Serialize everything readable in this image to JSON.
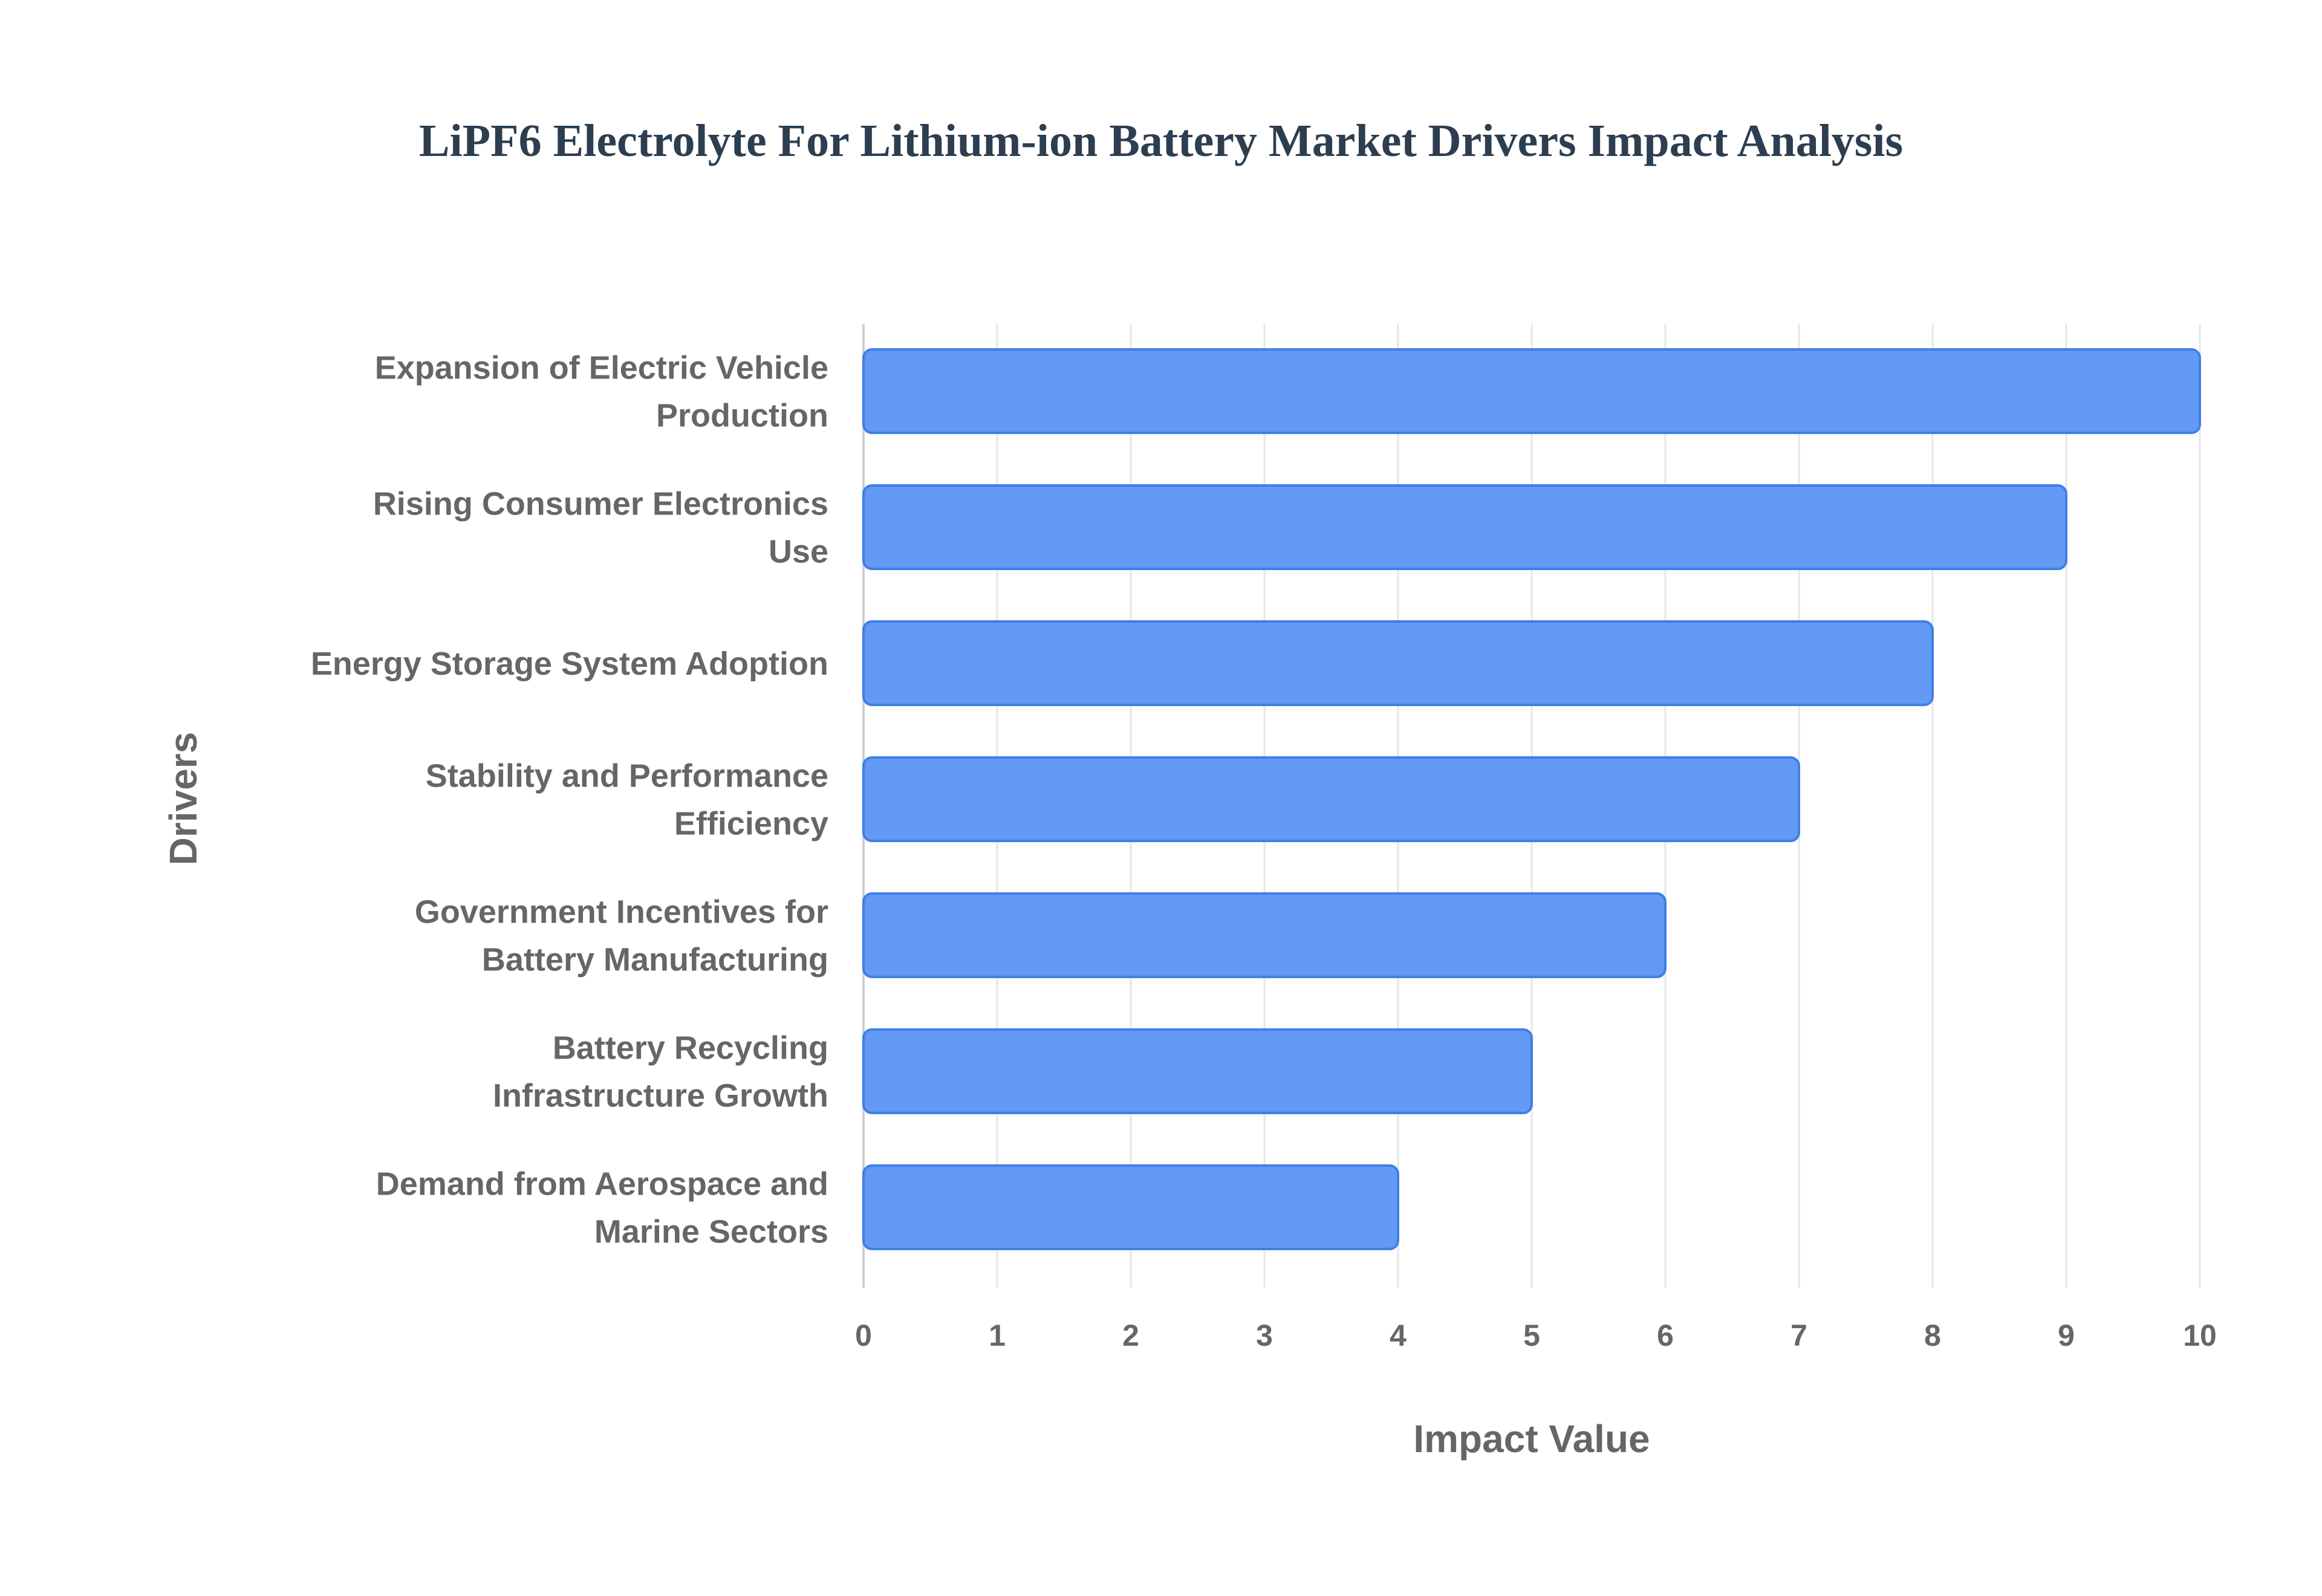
{
  "chart_data": {
    "type": "bar",
    "orientation": "horizontal",
    "title": "LiPF6 Electrolyte For Lithium-ion Battery Market Drivers Impact Analysis",
    "xlabel": "Impact Value",
    "ylabel": "Drivers",
    "categories": [
      [
        "Expansion of Electric Vehicle",
        "Production"
      ],
      [
        "Rising Consumer Electronics",
        "Use"
      ],
      [
        "Energy Storage System Adoption"
      ],
      [
        "Stability and Performance",
        "Efficiency"
      ],
      [
        "Government Incentives for",
        "Battery Manufacturing"
      ],
      [
        "Battery Recycling",
        "Infrastructure Growth"
      ],
      [
        "Demand from Aerospace and",
        "Marine Sectors"
      ]
    ],
    "values": [
      10,
      9,
      8,
      7,
      6,
      5,
      4
    ],
    "xlim": [
      0,
      10
    ],
    "xticks": [
      "0",
      "1",
      "2",
      "3",
      "4",
      "5",
      "6",
      "7",
      "8",
      "9",
      "10"
    ],
    "grid": true,
    "colors": {
      "bar": "#639af5",
      "bar_border": "#3f7fe8",
      "title": "#2c3e50",
      "text": "#666666",
      "grid": "#e6e6e6"
    }
  }
}
